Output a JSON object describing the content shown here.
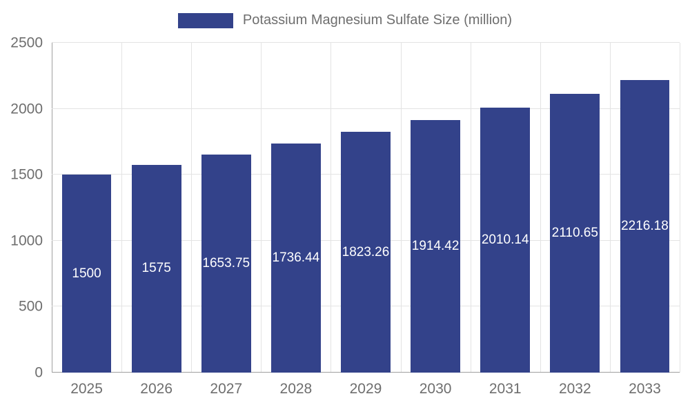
{
  "legend": {
    "label": "Potassium Magnesium Sulfate Size (million)"
  },
  "chart_data": {
    "type": "bar",
    "title": "Potassium Magnesium Sulfate Size (million)",
    "categories": [
      "2025",
      "2026",
      "2027",
      "2028",
      "2029",
      "2030",
      "2031",
      "2032",
      "2033"
    ],
    "values": [
      1500,
      1575,
      1653.75,
      1736.44,
      1823.26,
      1914.42,
      2010.14,
      2110.65,
      2216.18
    ],
    "bar_labels": [
      "1500",
      "1575",
      "1653.75",
      "1736.44",
      "1823.26",
      "1914.42",
      "2010.14",
      "2110.65",
      "2216.18"
    ],
    "xlabel": "",
    "ylabel": "",
    "ylim": [
      0,
      2500
    ],
    "yticks": [
      0,
      500,
      1000,
      1500,
      2000,
      2500
    ],
    "grid": true,
    "legend_position": "top",
    "colors": {
      "bar": "#33428a",
      "bar_label_text": "#ffffff",
      "axis_text": "#6e6e6e",
      "gridline": "#e3e3e3",
      "axis_line": "#9f9f9f",
      "background": "#ffffff"
    }
  }
}
